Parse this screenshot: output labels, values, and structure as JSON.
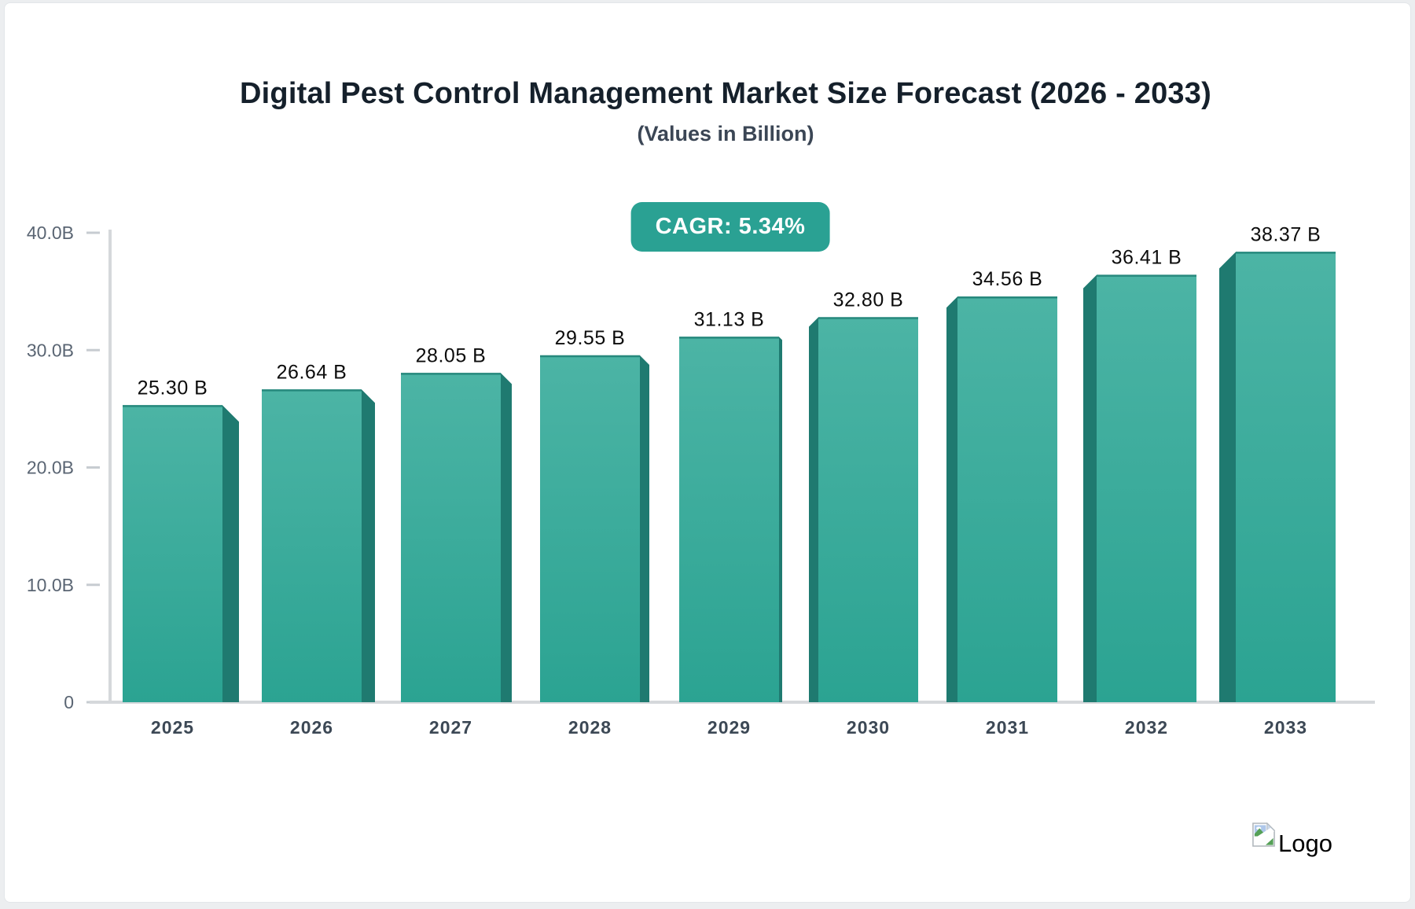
{
  "chart_data": {
    "type": "bar",
    "title": "Digital Pest Control Management Market Size Forecast (2026 - 2033)",
    "subtitle": "(Values in Billion)",
    "annotation": "CAGR: 5.34%",
    "categories": [
      "2025",
      "2026",
      "2027",
      "2028",
      "2029",
      "2030",
      "2031",
      "2032",
      "2033"
    ],
    "values": [
      25.3,
      26.64,
      28.05,
      29.55,
      31.13,
      32.8,
      34.56,
      36.41,
      38.37
    ],
    "value_labels": [
      "25.30 B",
      "26.64 B",
      "28.05 B",
      "29.55 B",
      "31.13 B",
      "32.80 B",
      "34.56 B",
      "36.41 B",
      "38.37 B"
    ],
    "xlabel": "",
    "ylabel": "",
    "ylim": [
      0,
      40
    ],
    "y_ticks": [
      {
        "value": 0,
        "label": "0"
      },
      {
        "value": 10,
        "label": "10.0B"
      },
      {
        "value": 20,
        "label": "20.0B"
      },
      {
        "value": 30,
        "label": "30.0B"
      },
      {
        "value": 40,
        "label": "40.0B"
      }
    ],
    "grid": false,
    "legend": "none",
    "colors": {
      "bar_top": "#4cb4a5",
      "bar_bottom": "#2ba392",
      "bar_side": "#1f7a70",
      "bar_top_edge": "#27897d",
      "axis": "#d5d8db",
      "tick_dash": "#c7ccd1",
      "tick_label": "#5a6573",
      "x_label": "#3c4855",
      "value_label": "#0c0c0c",
      "badge_bg": "#2aa193",
      "badge_text": "#ffffff"
    }
  },
  "logo": {
    "icon": "broken-image-icon",
    "alt_text": "Logo"
  }
}
